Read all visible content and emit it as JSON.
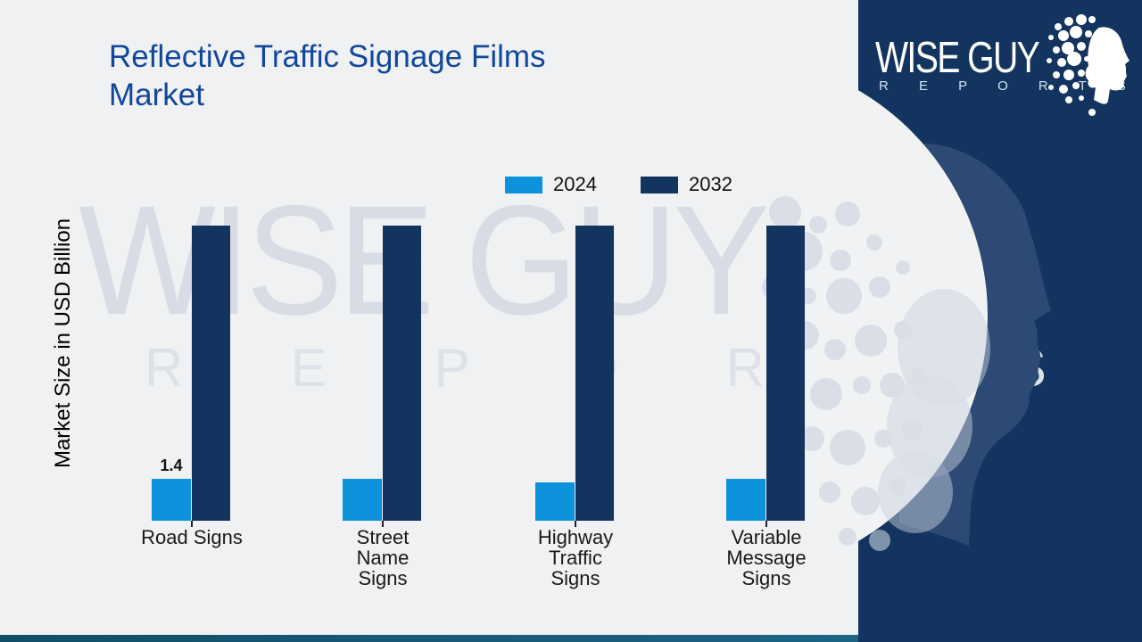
{
  "page": {
    "background_color": "#f0f1f2",
    "footer_bar_color_left": "#124e68",
    "footer_bar_color_right": "#1d6484"
  },
  "header": {
    "title_line1": "Reflective Traffic Signage Films",
    "title_line2": "Market",
    "title_color": "#11489d"
  },
  "brand": {
    "name": "WISE GUY",
    "subname": "R E P O R T S",
    "panel_color": "#12345e",
    "face_icon": "face-profile-dots-icon"
  },
  "watermark": {
    "line1": "WISE GUY",
    "line2": "R E P O R T S"
  },
  "legend": {
    "items": [
      {
        "label": "2024",
        "color": "#0c93dc"
      },
      {
        "label": "2032",
        "color": "#12345e"
      }
    ]
  },
  "chart_data": {
    "type": "bar",
    "title": "Reflective Traffic Signage Films Market",
    "xlabel": "",
    "ylabel": "Market Size in USD Billion",
    "categories": [
      "Road Signs",
      "Street Name Signs",
      "Highway Traffic Signs",
      "Variable Message Signs"
    ],
    "category_label_lines": [
      [
        "Road Signs"
      ],
      [
        "Street",
        "Name",
        "Signs"
      ],
      [
        "Highway",
        "Traffic",
        "Signs"
      ],
      [
        "Variable",
        "Message",
        "Signs"
      ]
    ],
    "series": [
      {
        "name": "2024",
        "color": "#0c93dc",
        "values": [
          1.4,
          1.4,
          1.3,
          1.4
        ]
      },
      {
        "name": "2032",
        "color": "#12345e",
        "values": [
          9.9,
          9.9,
          9.9,
          9.9
        ]
      }
    ],
    "data_labels": [
      "1.4",
      "",
      "",
      ""
    ],
    "ylim": [
      0,
      10.6
    ],
    "grid": false,
    "axis_lines": false,
    "legend_position": "top-center"
  }
}
